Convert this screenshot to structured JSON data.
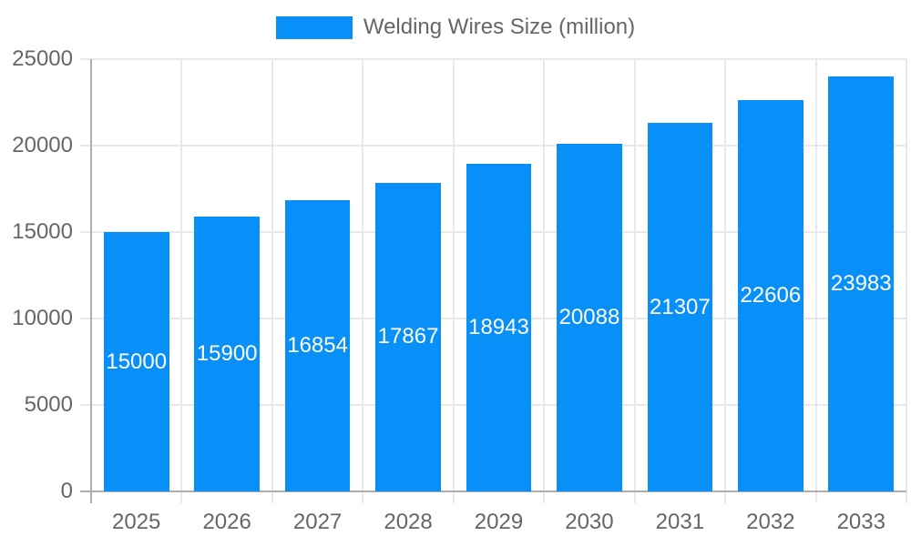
{
  "legend": {
    "label": "Welding Wires Size (million)"
  },
  "chart_data": {
    "type": "bar",
    "title": "Welding Wires Size (million)",
    "series_name": "Welding Wires Size (million)",
    "categories": [
      "2025",
      "2026",
      "2027",
      "2028",
      "2029",
      "2030",
      "2031",
      "2032",
      "2033"
    ],
    "values": [
      15000,
      15900,
      16854,
      17867,
      18943,
      20088,
      21307,
      22606,
      23983
    ],
    "bar_value_labels": [
      "15000",
      "15900",
      "16854",
      "17867",
      "18943",
      "20088",
      "21307",
      "22606",
      "23983"
    ],
    "xlabel": "",
    "ylabel": "",
    "ylim": [
      0,
      25000
    ],
    "yticks": [
      0,
      5000,
      10000,
      15000,
      20000,
      25000
    ],
    "ytick_labels": [
      "0",
      "5000",
      "10000",
      "15000",
      "20000",
      "25000"
    ],
    "grid": true,
    "legend_position": "top",
    "colors": {
      "bar": "#0890f8",
      "bar_value_text": "#ffffff",
      "tick_text": "#666666",
      "legend_text": "#666666",
      "gridline": "#e8e8e8",
      "axis": "#adadad",
      "background": "#ffffff"
    }
  }
}
